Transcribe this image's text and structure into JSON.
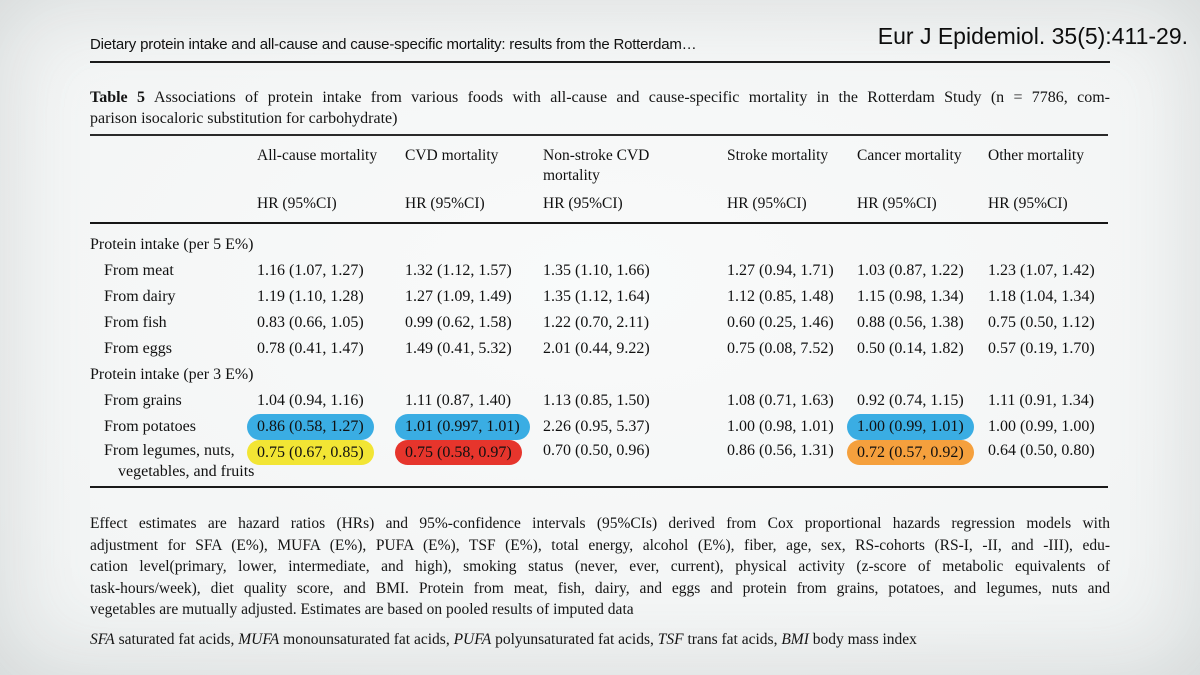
{
  "page": {
    "running_title": "Dietary protein intake and all-cause and cause-specific mortality: results from the Rotterdam…",
    "journal_ref": "Eur J Epidemiol. 35(5):411-29."
  },
  "table": {
    "label": "Table 5",
    "caption_lines": [
      "Associations of protein intake from various foods with all-cause and cause-specific mortality in the Rotterdam Study (n = 7786, com-",
      "parison isocaloric substitution for carbohydrate)"
    ],
    "columns": [
      {
        "label": "All-cause mortality",
        "sub": "HR (95%CI)"
      },
      {
        "label": "CVD mortality",
        "sub": "HR (95%CI)"
      },
      {
        "label": "Non-stroke CVD mortality",
        "sub": "HR (95%CI)"
      },
      {
        "label": "Stroke mortality",
        "sub": "HR (95%CI)"
      },
      {
        "label": "Cancer mortality",
        "sub": "HR (95%CI)"
      },
      {
        "label": "Other mortality",
        "sub": "HR (95%CI)"
      }
    ],
    "rows": [
      {
        "type": "section",
        "label": "Protein intake (per 5 E%)"
      },
      {
        "type": "data",
        "label": "From meat",
        "cells": [
          {
            "value": "1.16 (1.07, 1.27)"
          },
          {
            "value": "1.32 (1.12, 1.57)"
          },
          {
            "value": "1.35 (1.10, 1.66)"
          },
          {
            "value": "1.27 (0.94, 1.71)"
          },
          {
            "value": "1.03 (0.87, 1.22)"
          },
          {
            "value": "1.23 (1.07, 1.42)"
          }
        ]
      },
      {
        "type": "data",
        "label": "From dairy",
        "cells": [
          {
            "value": "1.19 (1.10, 1.28)"
          },
          {
            "value": "1.27 (1.09, 1.49)"
          },
          {
            "value": "1.35 (1.12, 1.64)"
          },
          {
            "value": "1.12 (0.85, 1.48)"
          },
          {
            "value": "1.15 (0.98, 1.34)"
          },
          {
            "value": "1.18 (1.04, 1.34)"
          }
        ]
      },
      {
        "type": "data",
        "label": "From fish",
        "cells": [
          {
            "value": "0.83 (0.66, 1.05)"
          },
          {
            "value": "0.99 (0.62, 1.58)"
          },
          {
            "value": "1.22 (0.70, 2.11)"
          },
          {
            "value": "0.60 (0.25, 1.46)"
          },
          {
            "value": "0.88 (0.56, 1.38)"
          },
          {
            "value": "0.75 (0.50, 1.12)"
          }
        ]
      },
      {
        "type": "data",
        "label": "From eggs",
        "cells": [
          {
            "value": "0.78 (0.41, 1.47)"
          },
          {
            "value": "1.49 (0.41, 5.32)"
          },
          {
            "value": "2.01 (0.44, 9.22)"
          },
          {
            "value": "0.75 (0.08, 7.52)"
          },
          {
            "value": "0.50 (0.14, 1.82)"
          },
          {
            "value": "0.57 (0.19, 1.70)"
          }
        ]
      },
      {
        "type": "section",
        "label": "Protein intake (per 3 E%)"
      },
      {
        "type": "data",
        "label": "From grains",
        "cells": [
          {
            "value": "1.04 (0.94, 1.16)"
          },
          {
            "value": "1.11 (0.87, 1.40)"
          },
          {
            "value": "1.13 (0.85, 1.50)"
          },
          {
            "value": "1.08 (0.71, 1.63)"
          },
          {
            "value": "0.92 (0.74, 1.15)"
          },
          {
            "value": "1.11 (0.91, 1.34)"
          }
        ]
      },
      {
        "type": "data",
        "label": "From potatoes",
        "cells": [
          {
            "value": "0.86 (0.58, 1.27)",
            "highlight_name": "blue",
            "highlight": "#3aade3"
          },
          {
            "value": "1.01 (0.997, 1.01)",
            "highlight_name": "blue",
            "highlight": "#3aade3"
          },
          {
            "value": "2.26 (0.95, 5.37)"
          },
          {
            "value": "1.00 (0.98, 1.01)"
          },
          {
            "value": "1.00 (0.99, 1.01)",
            "highlight_name": "blue",
            "highlight": "#3aade3"
          },
          {
            "value": "1.00 (0.99, 1.00)"
          }
        ]
      },
      {
        "type": "data",
        "label": "From legumes, nuts, vegetables, and fruits",
        "cells": [
          {
            "value": "0.75 (0.67, 0.85)",
            "highlight_name": "yellow",
            "highlight": "#f2e534"
          },
          {
            "value": "0.75 (0.58, 0.97)",
            "highlight_name": "red",
            "highlight": "#e6352c"
          },
          {
            "value": "0.70 (0.50, 0.96)"
          },
          {
            "value": "0.86 (0.56, 1.31)"
          },
          {
            "value": "0.72 (0.57, 0.92)",
            "highlight_name": "orange",
            "highlight": "#f5a03d"
          },
          {
            "value": "0.64 (0.50, 0.80)"
          }
        ]
      }
    ]
  },
  "footnote": {
    "lines": [
      "Effect estimates are hazard ratios (HRs) and 95%-confidence intervals (95%CIs) derived from Cox proportional hazards regression models with",
      "adjustment for SFA (E%), MUFA (E%), PUFA (E%), TSF (E%), total energy, alcohol (E%), fiber, age, sex, RS-cohorts (RS-I, -II, and -III), edu-",
      "cation level(primary, lower, intermediate, and high), smoking status (never, ever, current), physical activity (z-score of metabolic equivalents of",
      "task-hours/week), diet quality score, and BMI. Protein from meat, fish, dairy, and eggs and protein from grains, potatoes, and legumes, nuts and",
      "vegetables are mutually adjusted. Estimates are based on pooled results of imputed data"
    ],
    "abbreviations": [
      {
        "term": "SFA",
        "definition": "saturated fat acids,"
      },
      {
        "term": "MUFA",
        "definition": "monounsaturated fat acids,"
      },
      {
        "term": "PUFA",
        "definition": "polyunsaturated fat acids,"
      },
      {
        "term": "TSF",
        "definition": "trans fat acids,"
      },
      {
        "term": "BMI",
        "definition": "body mass index"
      }
    ]
  }
}
